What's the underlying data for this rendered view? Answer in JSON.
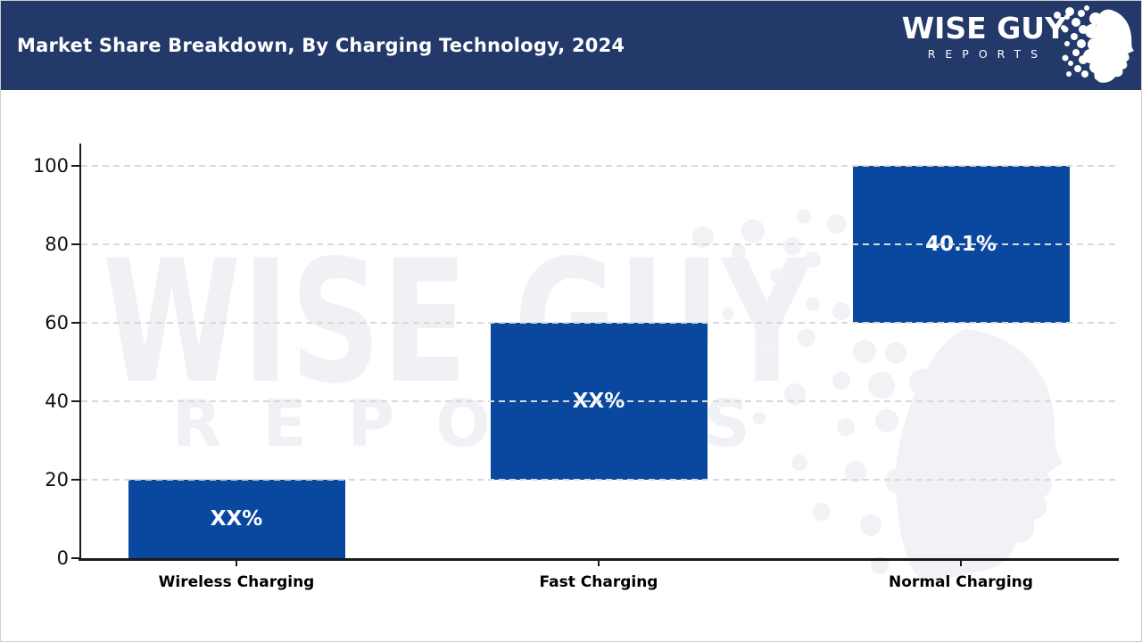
{
  "page": {
    "background": "#ffffff",
    "border_color": "#cfcfcf"
  },
  "header": {
    "background": "#22396A",
    "title": "Market Share Breakdown, By Charging Technology, 2024",
    "logo": {
      "name": "WISE GUY",
      "tagline": "REPORTS"
    }
  },
  "watermark": {
    "line1": "WISE GUY",
    "line2": "REPORTS"
  },
  "chart_data": {
    "type": "bar",
    "variant": "floating-segment waterfall-style vertical bars",
    "title": "Market Share Breakdown, By Charging Technology, 2024",
    "categories": [
      "Wireless Charging",
      "Fast Charging",
      "Normal Charging"
    ],
    "segments": [
      {
        "category": "Wireless Charging",
        "from": 0,
        "to": 20,
        "label": "XX%"
      },
      {
        "category": "Fast Charging",
        "from": 20,
        "to": 60,
        "label": "XX%"
      },
      {
        "category": "Normal Charging",
        "from": 60,
        "to": 100,
        "label": "40.1%"
      }
    ],
    "yticks": [
      0,
      20,
      40,
      60,
      80,
      100
    ],
    "ylim": [
      0,
      105
    ],
    "xlabel": "",
    "ylabel": "",
    "grid": "horizontal-dashed",
    "grid_color": "#d9d9d9",
    "bar_color": "#0A48A0",
    "bar_label_color": "#ffffff",
    "axis_color": "#1a1a1a",
    "legend_position": "none"
  }
}
